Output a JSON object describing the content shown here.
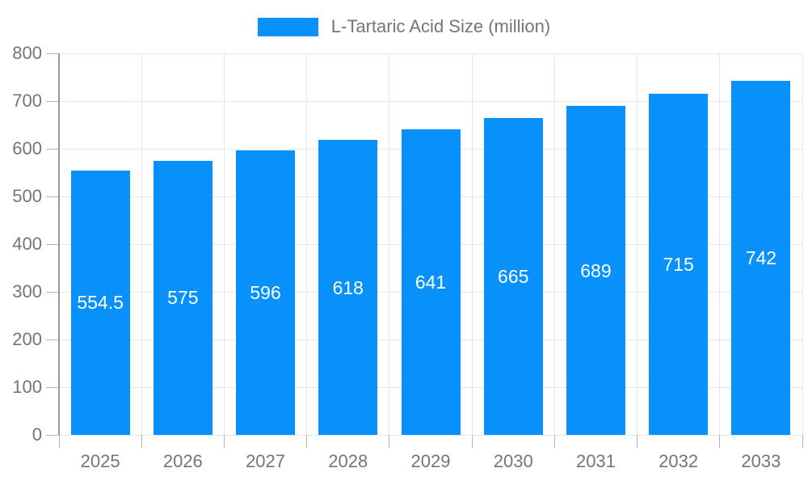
{
  "chart_data": {
    "type": "bar",
    "title": "L-Tartaric Acid Size (million)",
    "legend": [
      "L-Tartaric Acid Size (million)"
    ],
    "legend_position": "top-center",
    "categories": [
      "2025",
      "2026",
      "2027",
      "2028",
      "2029",
      "2030",
      "2031",
      "2032",
      "2033"
    ],
    "values": [
      554.5,
      575,
      596,
      618,
      641,
      665,
      689,
      715,
      742
    ],
    "xlabel": "",
    "ylabel": "",
    "ylim": [
      0,
      800
    ],
    "ytick_step": 100,
    "yticks": [
      0,
      100,
      200,
      300,
      400,
      500,
      600,
      700,
      800
    ],
    "grid": true,
    "value_labels_shown": true,
    "colors": {
      "bar": "#0891fa",
      "value_label": "#ffffff",
      "tick_label": "#757575",
      "legend_text": "#757575",
      "gridline": "#e6e6e6",
      "axis_line": "#999999",
      "tick_mark": "#b3b3b3",
      "background": "#ffffff"
    }
  }
}
